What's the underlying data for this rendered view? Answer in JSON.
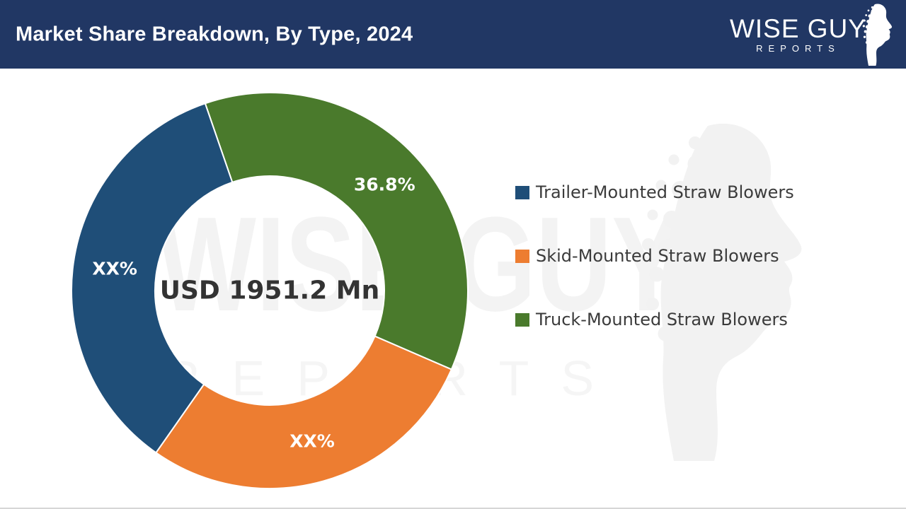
{
  "header": {
    "title": "Market Share Breakdown, By Type, 2024",
    "brand": {
      "line1": "WISE GUY",
      "line2": "REPORTS"
    }
  },
  "watermark": {
    "line1": "WISE GUY",
    "line2": "REPORTS"
  },
  "chart_data": {
    "type": "pie",
    "donut": true,
    "center_label": "USD 1951.2 Mn",
    "legend_position": "right",
    "start_angle_deg": 109,
    "clockwise": true,
    "draw_order": [
      2,
      1,
      0
    ],
    "slices": [
      {
        "label": "Trailer-Mounted Straw Blowers",
        "display_pct": "XX%",
        "sweep_pct_est": 35.0,
        "color": "#1F4E78"
      },
      {
        "label": "Skid-Mounted Straw Blowers",
        "display_pct": "XX%",
        "sweep_pct_est": 28.2,
        "color": "#ED7D31"
      },
      {
        "label": "Truck-Mounted Straw Blowers",
        "display_pct": "36.8%",
        "sweep_pct_est": 36.8,
        "color": "#4A7A2C"
      }
    ]
  },
  "colors": {
    "header_bg": "#213764",
    "watermark": "#f3f3f3",
    "center_text": "#333333",
    "legend_text": "#3b3b3b",
    "separator": "#ffffff",
    "bottom_border": "#d6d6d6"
  }
}
